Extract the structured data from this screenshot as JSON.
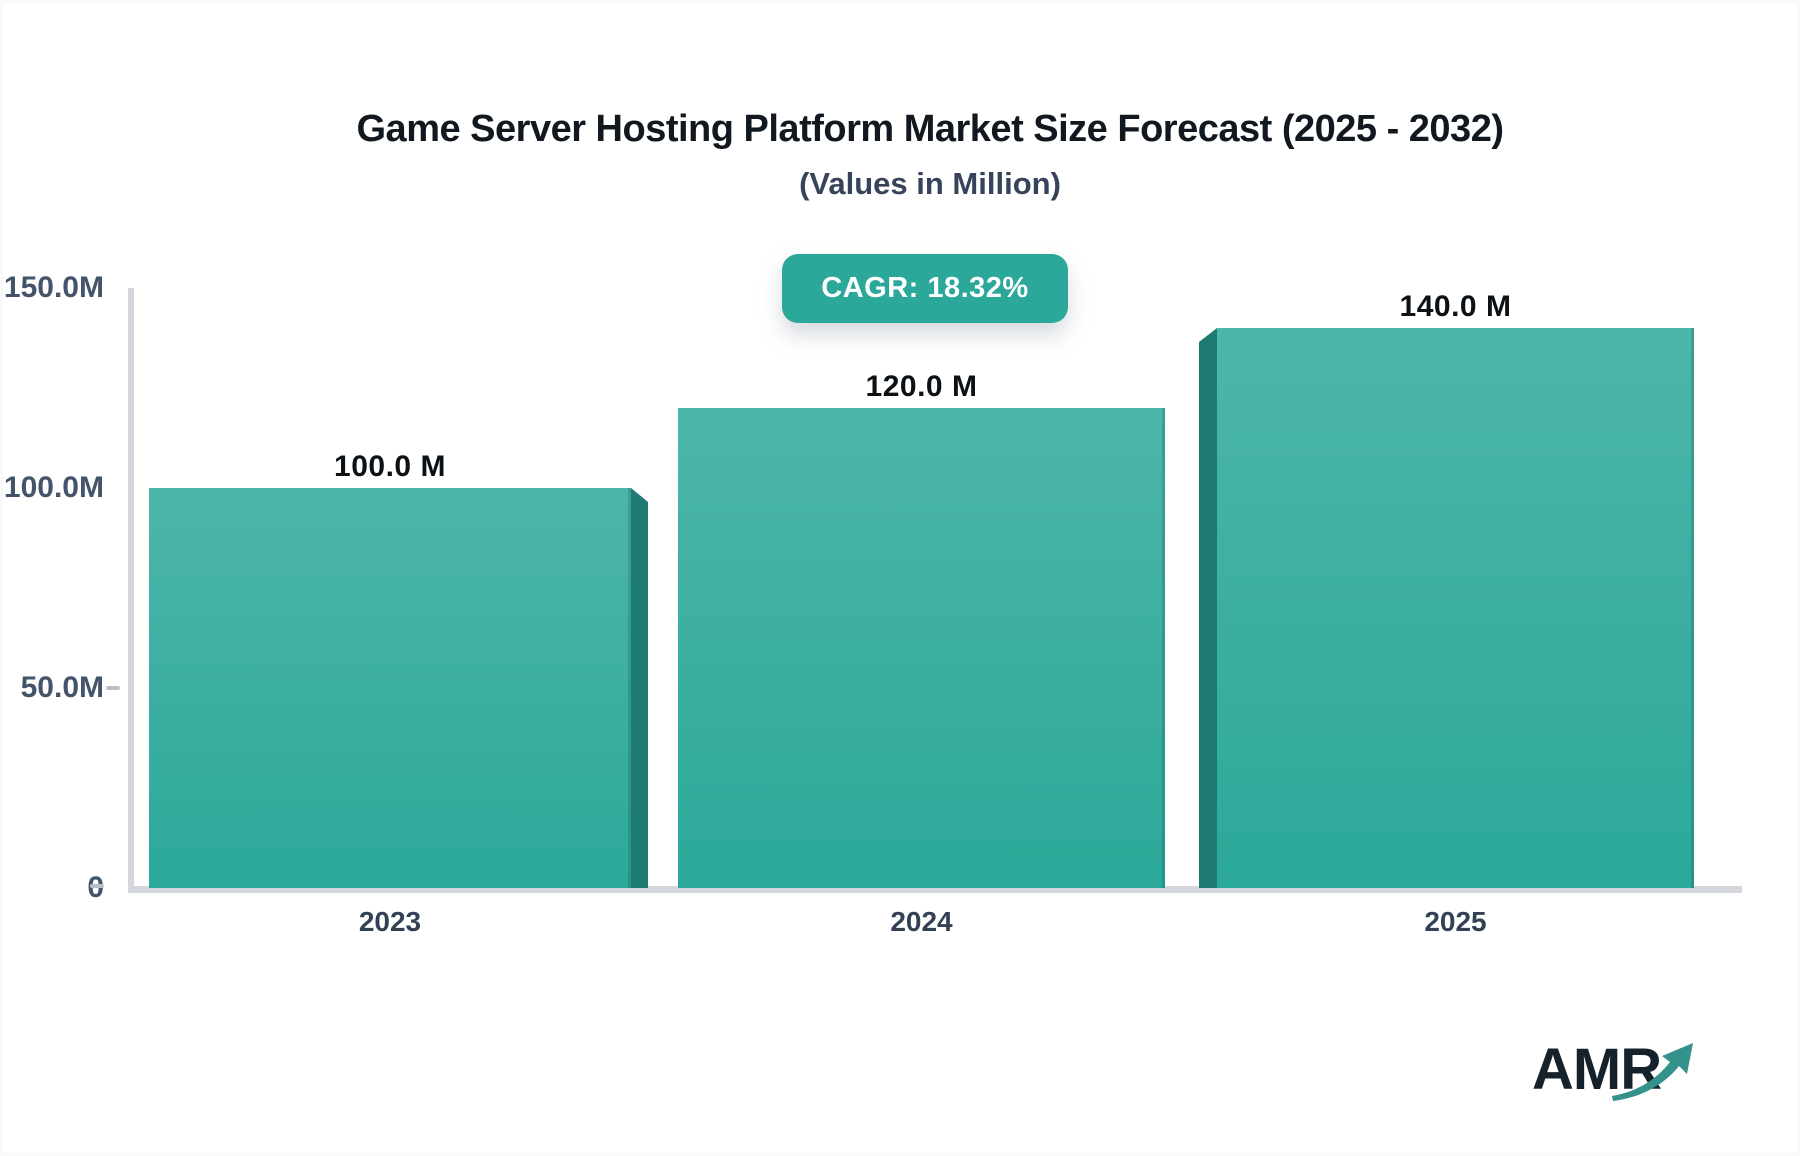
{
  "chart_data": {
    "type": "bar",
    "title": "Game Server Hosting Platform Market Size Forecast (2025 - 2032)",
    "subtitle": "(Values in Million)",
    "badge_label": "CAGR: 18.32%",
    "categories": [
      "2023",
      "2024",
      "2025"
    ],
    "values": [
      100,
      120,
      140
    ],
    "bars": [
      {
        "category": "2023",
        "value": 100,
        "value_label": "100.0 M"
      },
      {
        "category": "2024",
        "value": 120,
        "value_label": "120.0 M"
      },
      {
        "category": "2025",
        "value": 140,
        "value_label": "140.0 M"
      }
    ],
    "y_axis": {
      "min": 0,
      "max": 150,
      "ticks": [
        {
          "value": 150,
          "label": "150.0M"
        },
        {
          "value": 100,
          "label": "100.0M"
        },
        {
          "value": 50,
          "label": "50.0M"
        },
        {
          "value": 0,
          "label": "0"
        }
      ]
    },
    "unit": "Million",
    "grid": false,
    "legend": "none",
    "colors": {
      "bar_top": "#4DB6AA",
      "bar_bottom": "#2BA99A",
      "bar_side_3d": "#1E7B71",
      "badge_bg": "#2CA89B",
      "axis_line": "#D4D7DC",
      "title_text": "#12181F",
      "subtitle_text": "#36435A",
      "axis_label_text": "#44546B",
      "value_label_text": "#0C1116"
    }
  },
  "logo": {
    "text": "AMR",
    "icon": "trend-up-arrow"
  }
}
